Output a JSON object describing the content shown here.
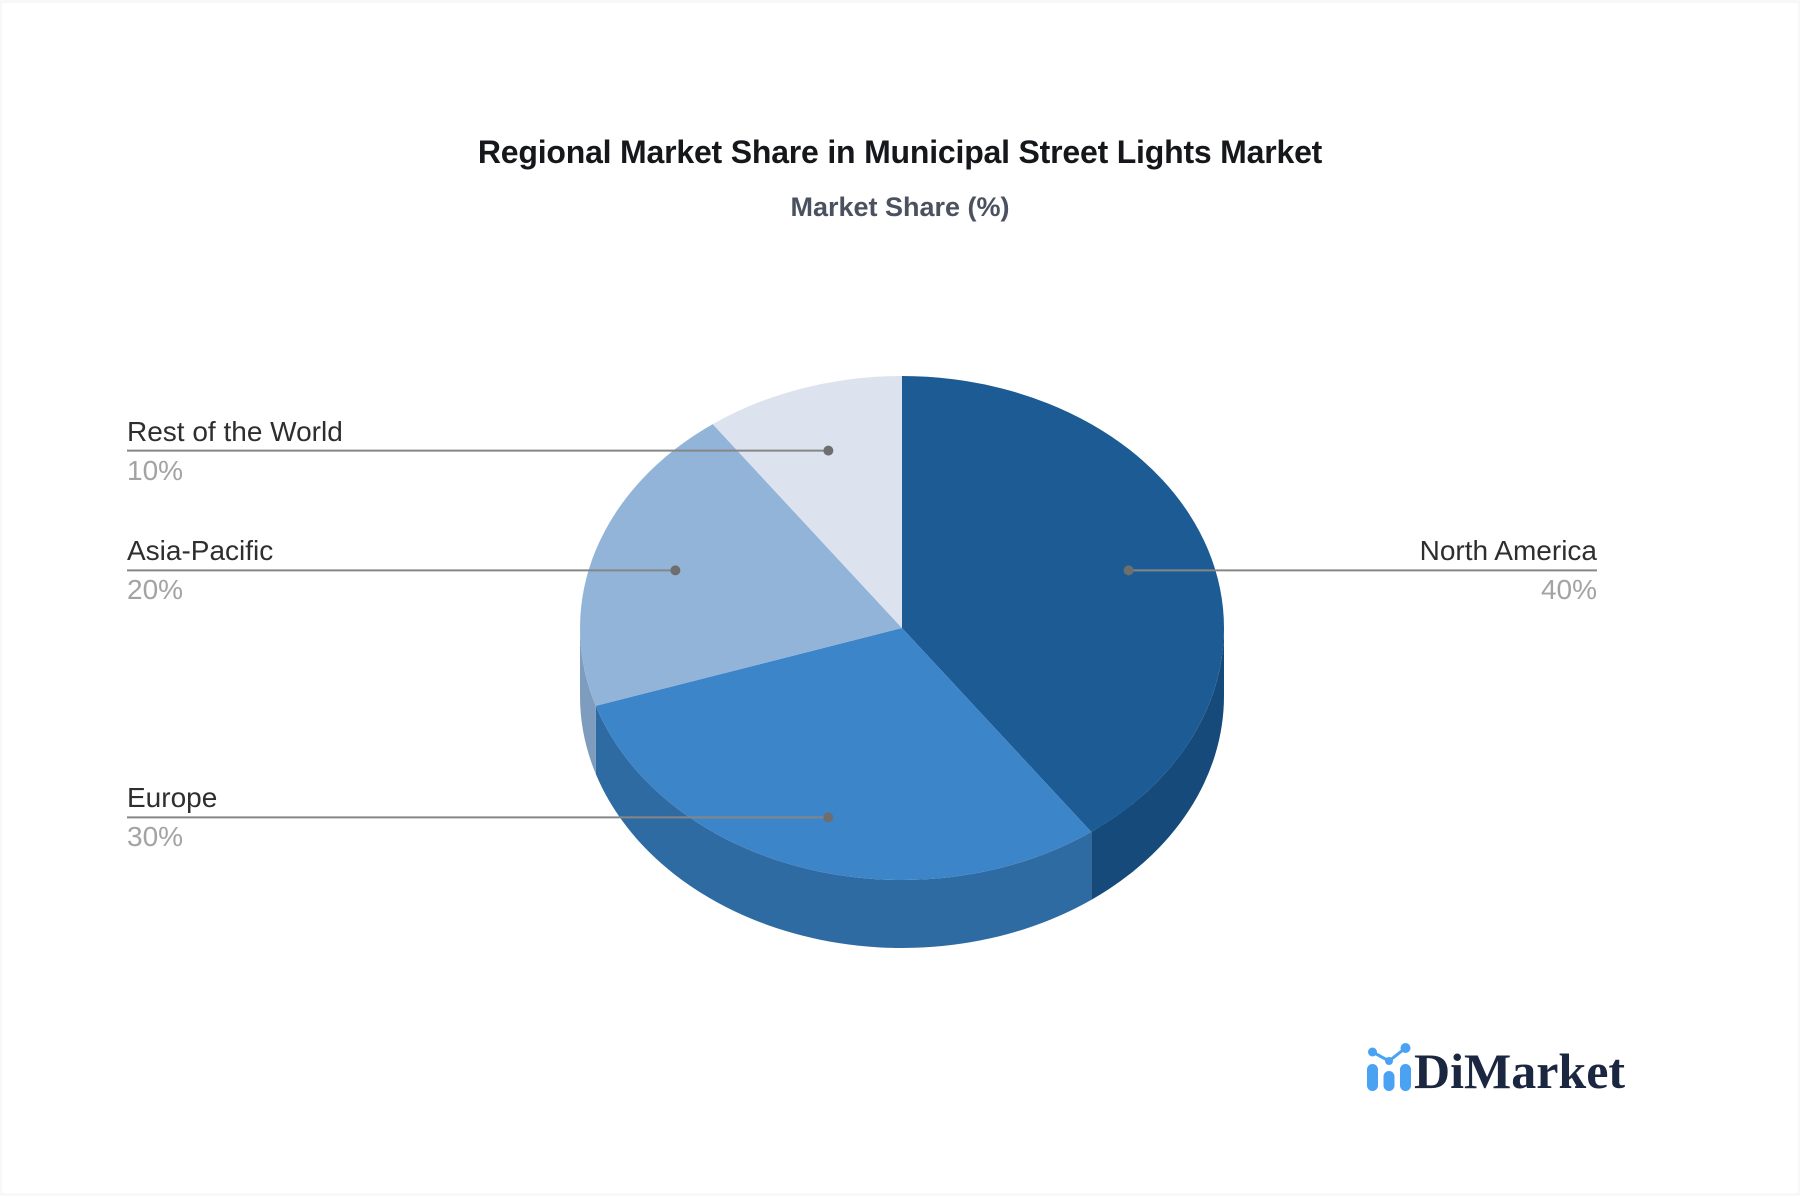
{
  "header": {
    "title": "Regional Market Share in Municipal Street Lights Market",
    "subtitle": "Market Share (%)"
  },
  "chart_data": {
    "type": "pie",
    "title": "Regional Market Share in Municipal Street Lights Market",
    "subtitle": "Market Share (%)",
    "unit": "%",
    "effect": "3d",
    "start_angle_deg": -90,
    "direction": "clockwise",
    "legend": "none",
    "connector_color": "#868686",
    "connector_dot_color": "#6e6e6e",
    "slices": [
      {
        "name": "North America",
        "value": 40,
        "pct_label": "40%",
        "color": "#1d5b94",
        "side_color": "#154a7b",
        "label_side": "right"
      },
      {
        "name": "Europe",
        "value": 30,
        "pct_label": "30%",
        "color": "#3c85c8",
        "side_color": "#2f6ba3",
        "label_side": "left"
      },
      {
        "name": "Asia-Pacific",
        "value": 20,
        "pct_label": "20%",
        "color": "#93b4d9",
        "side_color": "#7e9cbd",
        "label_side": "left"
      },
      {
        "name": "Rest of the World",
        "value": 10,
        "pct_label": "10%",
        "color": "#dde3ee",
        "label_side": "left"
      }
    ]
  },
  "branding": {
    "logo_text": "DiMarket",
    "logo_icon": "bar-line-chart-icon",
    "icon_color": "#4aa2f3",
    "text_color": "#1b2740"
  }
}
